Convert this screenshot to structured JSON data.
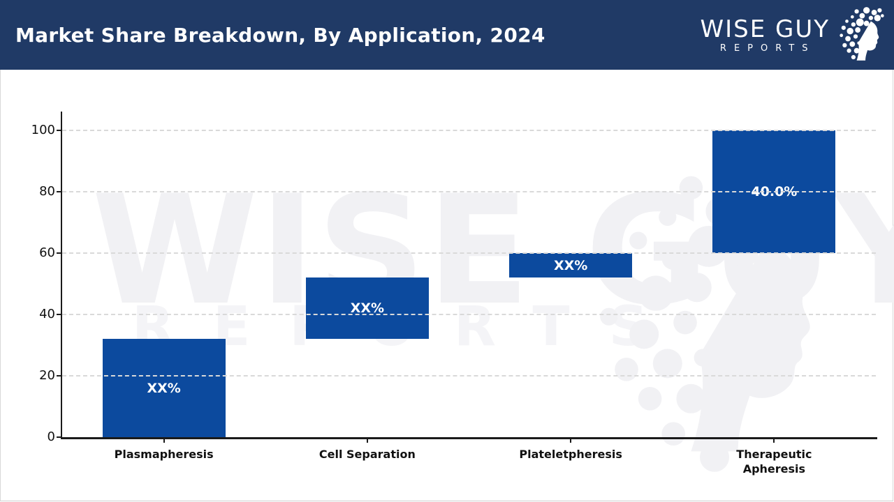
{
  "header": {
    "title": "Market Share Breakdown, By Application, 2024",
    "logo": {
      "line1": "WISE GUY",
      "line2": "REPORTS"
    }
  },
  "watermark": {
    "line1": "WISE GUY",
    "line2": "REPORTS"
  },
  "chart_data": {
    "type": "bar",
    "subtype": "waterfall",
    "title": "Market Share Breakdown, By Application, 2024",
    "categories": [
      "Plasmapheresis",
      "Cell Separation",
      "Plateletpheresis",
      "Therapeutic Apheresis"
    ],
    "segments": [
      {
        "category": "Plasmapheresis",
        "from": 0,
        "to": 32,
        "value": 32,
        "label": "XX%"
      },
      {
        "category": "Cell Separation",
        "from": 32,
        "to": 52,
        "value": 20,
        "label": "XX%"
      },
      {
        "category": "Plateletpheresis",
        "from": 52,
        "to": 60,
        "value": 8,
        "label": "XX%"
      },
      {
        "category": "Therapeutic Apheresis",
        "from": 60,
        "to": 100,
        "value": 40,
        "label": "40.0%"
      }
    ],
    "xlabel": "",
    "ylabel": "",
    "yticks": [
      0,
      20,
      40,
      60,
      80,
      100
    ],
    "ylim": [
      0,
      106
    ],
    "grid": "horizontal-dashed",
    "legend": "none",
    "bar_color": "#0C4A9E"
  },
  "colors": {
    "header_bg": "#203A66",
    "bar": "#0C4A9E",
    "grid": "#d9d9d9",
    "axis": "#1a1a1a",
    "watermark": "#f1f1f4"
  }
}
